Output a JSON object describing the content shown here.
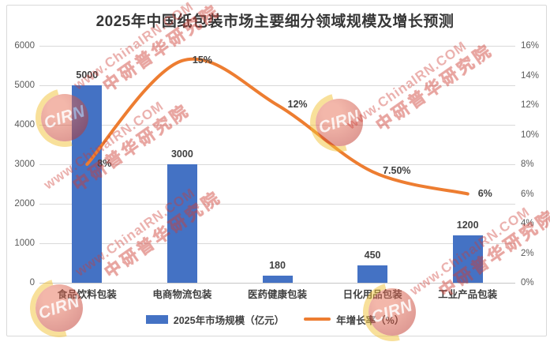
{
  "title": "2025年中国纸包装市场主要细分领域规模及增长预测",
  "chart_data": {
    "type": "bar+line",
    "title": "2025年中国纸包装市场主要细分领域规模及增长预测",
    "categories": [
      "食品饮料包装",
      "电商物流包装",
      "医药健康包装",
      "日化用品包装",
      "工业产品包装"
    ],
    "series": [
      {
        "name": "2025年市场规模（亿元）",
        "type": "bar",
        "axis": "left",
        "values": [
          5000,
          3000,
          180,
          450,
          1200
        ],
        "labels": [
          "5000",
          "3000",
          "180",
          "450",
          "1200"
        ],
        "color": "#4472C4"
      },
      {
        "name": "年增长率（%）",
        "type": "line",
        "axis": "right",
        "values": [
          8,
          15,
          12,
          7.5,
          6
        ],
        "labels": [
          "8%",
          "15%",
          "12%",
          "7.50%",
          "6%"
        ],
        "color": "#ED7D31"
      }
    ],
    "left_axis": {
      "min": 0,
      "max": 6000,
      "step": 1000,
      "ticks": [
        "0",
        "1000",
        "2000",
        "3000",
        "4000",
        "5000",
        "6000"
      ]
    },
    "right_axis": {
      "min": 0,
      "max": 16,
      "step": 2,
      "ticks": [
        "0%",
        "2%",
        "4%",
        "6%",
        "8%",
        "10%",
        "12%",
        "14%",
        "16%"
      ]
    },
    "grid": true,
    "legend_position": "bottom"
  },
  "watermark": {
    "logo_text": "CIRN",
    "line1": "www.ChinaIRN.COM",
    "line2": "中研普华研究院"
  },
  "colors": {
    "bar": "#4472C4",
    "line": "#ED7D31",
    "grid": "#D9D9D9",
    "text": "#404040",
    "axis_text": "#595959",
    "title_text": "#363636",
    "watermark_red": "#CD3C34",
    "watermark_yellow": "#F2C237"
  }
}
